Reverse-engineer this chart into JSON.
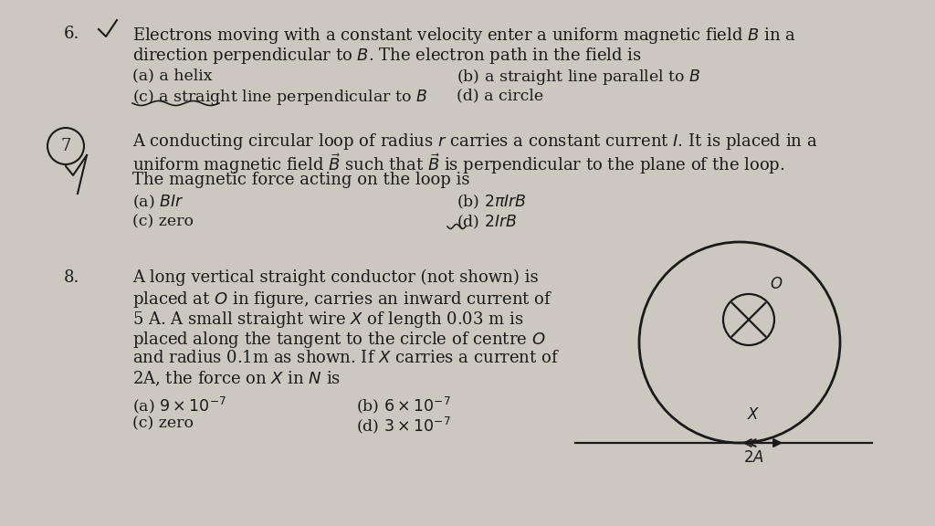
{
  "bg_color": "#ccc8c0",
  "text_color": "#1a1a1a",
  "fig_width": 10.24,
  "fig_height": 5.76,
  "q6_number": "6.",
  "q6_text_line1": "Electrons moving with a constant velocity enter a uniform magnetic field $B$ in a",
  "q6_text_line2": "direction perpendicular to $B$. The electron path in the field is",
  "q6_a": "(a) a helix",
  "q6_b": "(b) a straight line parallel to $B$",
  "q6_c": "(c) a straight line perpendicular to $B$",
  "q6_d": "(d) a circle",
  "q7_number": "7",
  "q7_text_line1": "A conducting circular loop of radius $r$ carries a constant current $I$. It is placed in a",
  "q7_text_line2": "uniform magnetic field $\\vec{B}$ such that $\\vec{B}$ is perpendicular to the plane of the loop.",
  "q7_text_line3": "The magnetic force acting on the loop is",
  "q7_a": "(a) $BIr$",
  "q7_b": "(b) $2\\pi IrB$",
  "q7_c": "(c) zero",
  "q7_d": "(d) $2IrB$",
  "q8_number": "8.",
  "q8_text_line1": "A long vertical straight conductor (not shown) is",
  "q8_text_line2": "placed at $O$ in figure, carries an inward current of",
  "q8_text_line3": "5 A. A small straight wire $X$ of length 0.03 m is",
  "q8_text_line4": "placed along the tangent to the circle of centre $O$",
  "q8_text_line5": "and radius 0.1m as shown. If $X$ carries a current of",
  "q8_text_line6": "2A, the force on $X$ in $N$ is",
  "q8_a": "(a) $9 \\times 10^{-7}$",
  "q8_b": "(b) $6 \\times 10^{-7}$",
  "q8_c": "(c) zero",
  "q8_d": "(d) $3 \\times 10^{-7}$"
}
